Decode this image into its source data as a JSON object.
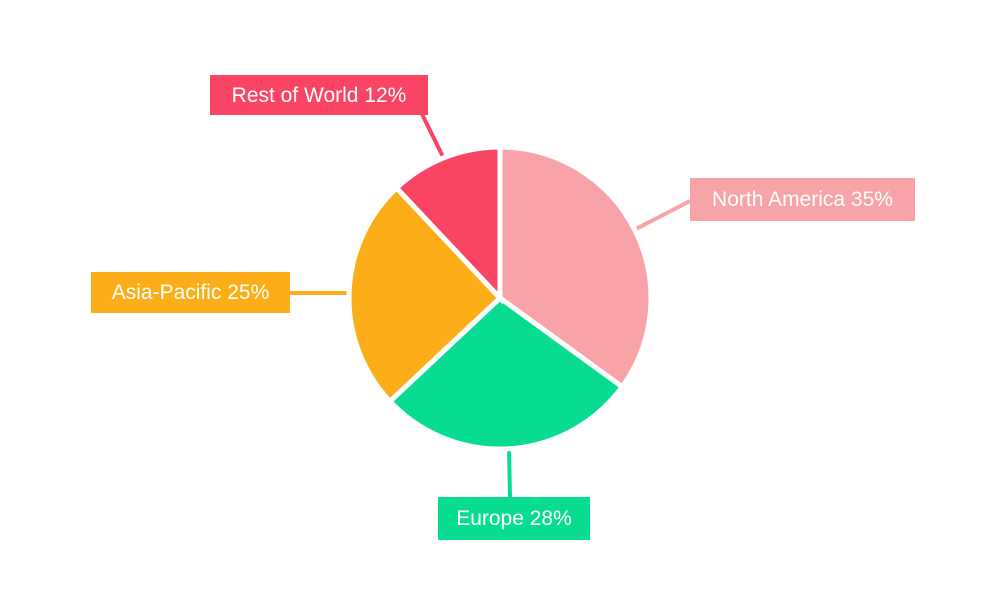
{
  "chart_data": {
    "type": "pie",
    "start_angle_deg": -90,
    "direction": "clockwise",
    "background": "#FFFFFF",
    "label_text_color": "#FFFFFF",
    "legend_position": "none",
    "slices": [
      {
        "id": "north-america",
        "label": "North America",
        "value": 35,
        "display": "North America 35%",
        "color": "#F7A3A8"
      },
      {
        "id": "europe",
        "label": "Europe",
        "value": 28,
        "display": "Europe 28%",
        "color": "#07DC91"
      },
      {
        "id": "asia-pacific",
        "label": "Asia-Pacific",
        "value": 25,
        "display": "Asia-Pacific 25%",
        "color": "#FBAE17"
      },
      {
        "id": "rest-of-world",
        "label": "Rest of World",
        "value": 12,
        "display": "Rest of World 12%",
        "color": "#FA4463"
      }
    ]
  }
}
